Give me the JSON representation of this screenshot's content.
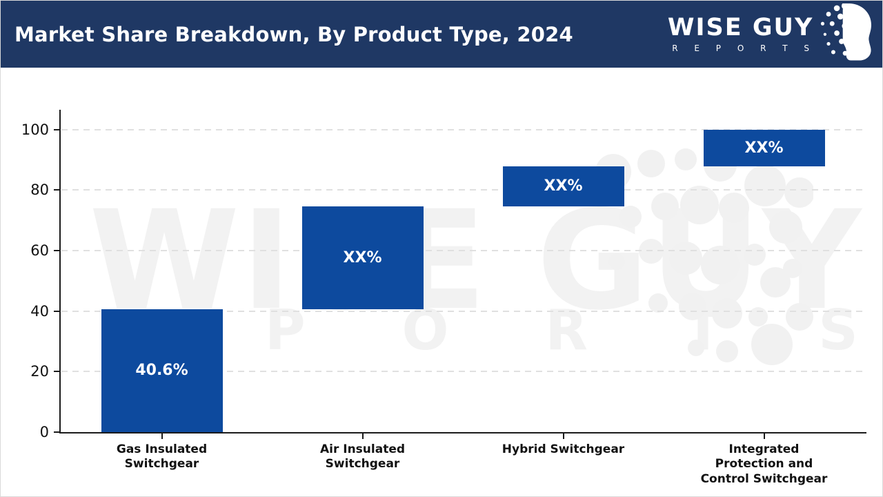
{
  "header": {
    "title": "Market Share Breakdown, By Product Type, 2024",
    "logo": {
      "brand": "WISE GUY",
      "sub": "R E P O R T S",
      "face_icon": "dotted-head-profile"
    }
  },
  "watermark": {
    "line1": "WISE GUY",
    "line2": "P O R T S"
  },
  "chart_data": {
    "type": "bar",
    "subtype": "floating-waterfall-segments",
    "title": "Market Share Breakdown, By Product Type, 2024",
    "xlabel": "",
    "ylabel": "",
    "ylim": [
      0,
      105
    ],
    "yticks": [
      0,
      20,
      40,
      60,
      80,
      100
    ],
    "grid": "horizontal-dashed",
    "legend": "none",
    "categories": [
      "Gas Insulated Switchgear",
      "Air Insulated Switchgear",
      "Hybrid Switchgear",
      "Integrated Protection and Control Switchgear"
    ],
    "bars": [
      {
        "category_lines": [
          "Gas Insulated",
          "Switchgear"
        ],
        "start": 0,
        "end": 40.6,
        "label": "40.6%"
      },
      {
        "category_lines": [
          "Air Insulated",
          "Switchgear"
        ],
        "start": 40.6,
        "end": 74.6,
        "label": "XX%"
      },
      {
        "category_lines": [
          "Hybrid Switchgear"
        ],
        "start": 74.6,
        "end": 87.8,
        "label": "XX%"
      },
      {
        "category_lines": [
          "Integrated",
          "Protection and",
          "Control Switchgear"
        ],
        "start": 87.8,
        "end": 100,
        "label": "XX%"
      }
    ],
    "colors": {
      "bar": "#0d4a9e",
      "bar_label": "#ffffff",
      "axis": "#1a1a1a",
      "gridline": "#e0e0e0",
      "tick_text": "#111111",
      "header_bg": "#1f3864",
      "header_text": "#ffffff",
      "watermark": "#f2f2f2",
      "page_border": "#d9d9d9"
    }
  }
}
